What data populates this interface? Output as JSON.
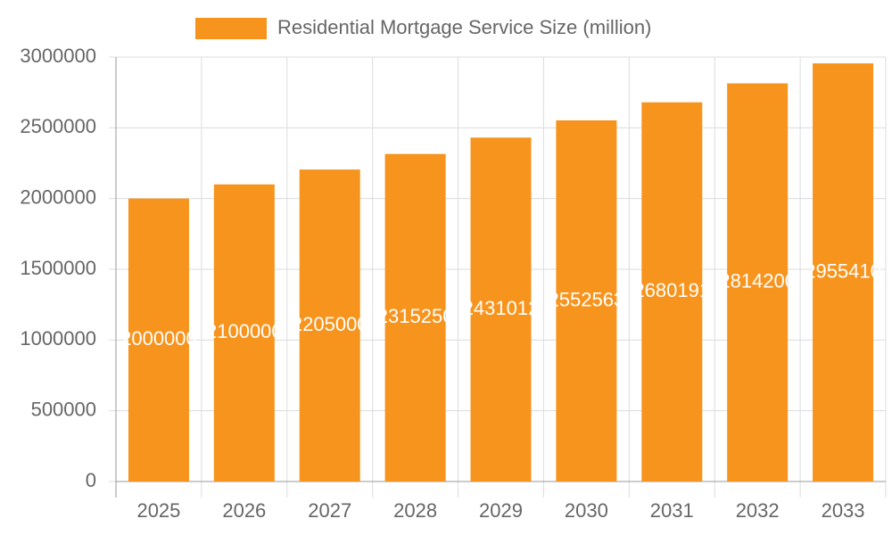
{
  "chart_data": {
    "type": "bar",
    "categories": [
      "2025",
      "2026",
      "2027",
      "2028",
      "2029",
      "2030",
      "2031",
      "2032",
      "2033"
    ],
    "series": [
      {
        "name": "Residential Mortgage Service Size (million)",
        "color": "#f7941d",
        "values": [
          2000000,
          2100000,
          2205000,
          2315250,
          2431012,
          2552563,
          2680191,
          2814200,
          2955410
        ]
      }
    ],
    "ylim": [
      0,
      3000000
    ],
    "yticks": [
      0,
      500000,
      1000000,
      1500000,
      2000000,
      2500000,
      3000000
    ],
    "grid": true,
    "legend": "top"
  }
}
